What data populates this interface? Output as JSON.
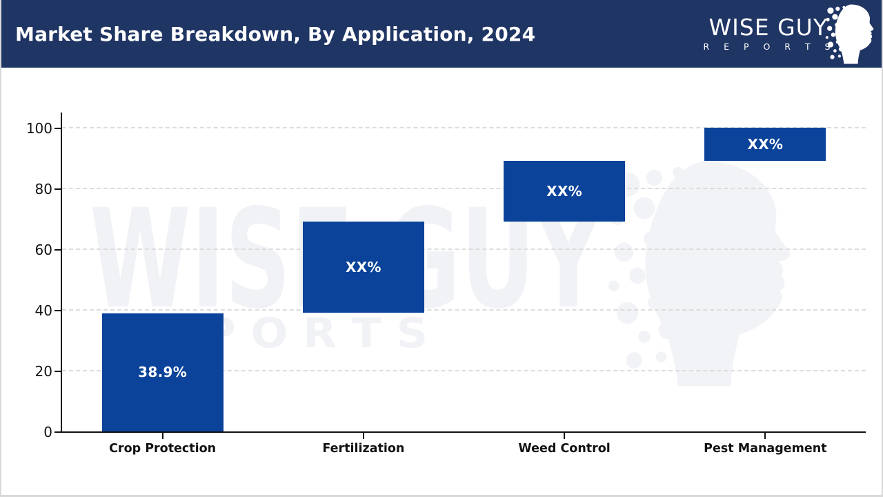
{
  "header": {
    "title": "Market Share Breakdown, By Application, 2024",
    "logo": {
      "wordmark": "WISE GUY",
      "subtext": "R E P O R T S"
    }
  },
  "watermark": {
    "line1": "WISE GUY",
    "line2": "R E P O R T S"
  },
  "chart_data": {
    "type": "bar",
    "subtype": "floating-waterfall",
    "title": "Market Share Breakdown, By Application, 2024",
    "categories": [
      "Crop Protection",
      "Fertilization",
      "Weed Control",
      "Pest Management"
    ],
    "series": [
      {
        "name": "Market Share (%)",
        "segments": [
          {
            "category": "Crop Protection",
            "start": 0,
            "end": 38.9,
            "label": "38.9%"
          },
          {
            "category": "Fertilization",
            "start": 39,
            "end": 69,
            "label": "XX%"
          },
          {
            "category": "Weed Control",
            "start": 69,
            "end": 89,
            "label": "XX%"
          },
          {
            "category": "Pest Management",
            "start": 89,
            "end": 100,
            "label": "XX%"
          }
        ]
      }
    ],
    "xlabel": "",
    "ylabel": "",
    "y_ticks": [
      0,
      20,
      40,
      60,
      80,
      100
    ],
    "ylim": [
      0,
      105
    ],
    "grid": "horizontal-dashed",
    "legend": "none",
    "bar_color": "#0a4399",
    "bar_label_color": "#ffffff"
  },
  "colors": {
    "header_bg": "#1f3564",
    "header_text": "#ffffff",
    "bar": "#0a4399",
    "grid": "#dcdcdc",
    "axis": "#111111",
    "watermark": "#f1f2f5",
    "page_border": "#d9d9d9"
  }
}
